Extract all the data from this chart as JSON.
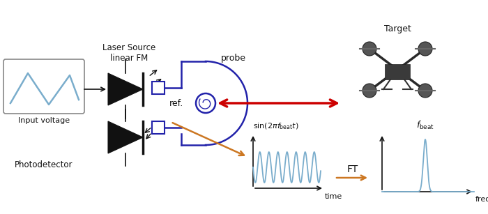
{
  "bg_color": "#ffffff",
  "blue_color": "#2222aa",
  "light_blue_color": "#7aadcc",
  "red_color": "#cc0000",
  "orange_color": "#cc7722",
  "black_color": "#111111",
  "gray_color": "#888888",
  "laser_label": "Laser Source\nlinear FM",
  "input_label": "Input voltage",
  "photo_label": "Photodetector",
  "probe_label": "probe",
  "ref_label": "ref.",
  "target_label": "Target",
  "ft_label": "FT",
  "time_label": "time",
  "freq_label": "freq.",
  "fbeat_label": "$f_{\\mathrm{beat}}$"
}
